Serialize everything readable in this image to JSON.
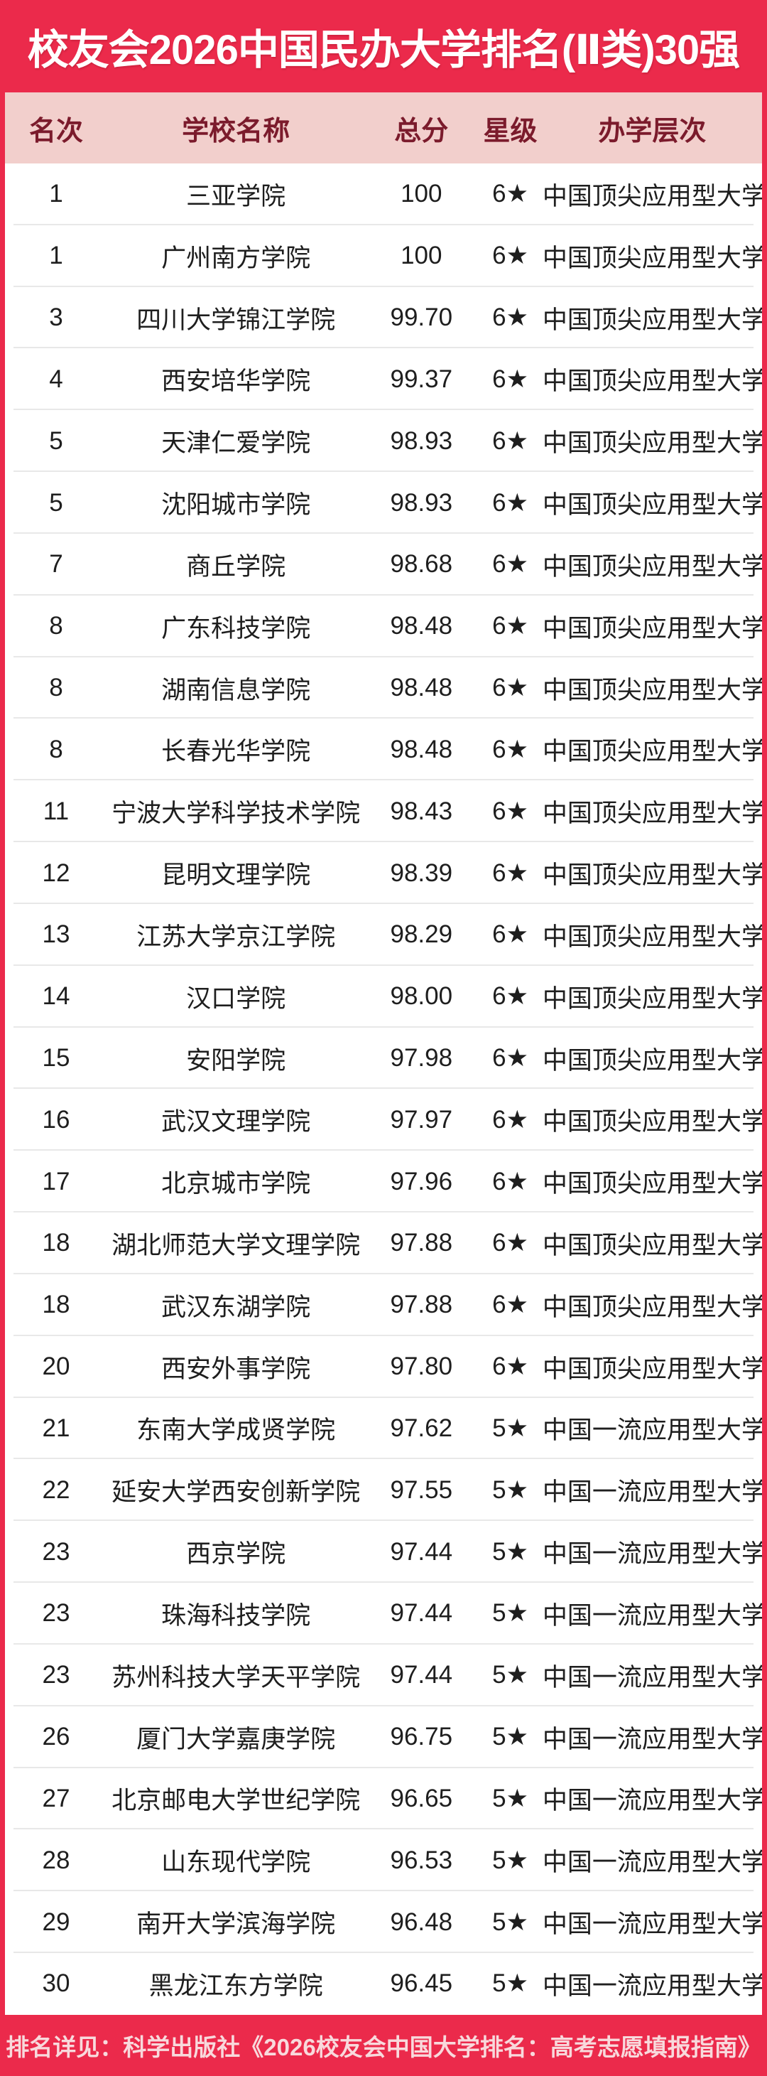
{
  "title": "校友会2026中国民办大学排名(Ⅱ类)30强",
  "footer_note": "排名详见：科学出版社《2026校友会中国大学排名：高考志愿填报指南》",
  "colors": {
    "accent_red": "#EB2A4B",
    "header_bg": "#F2CFCC",
    "header_text": "#7B1B2C",
    "row_text": "#1E1E1E",
    "separator": "#E8E8E8",
    "footer_text": "#F8D9DC"
  },
  "chart_data": {
    "type": "table",
    "title": "校友会2026中国民办大学排名(Ⅱ类)30强",
    "columns": [
      "名次",
      "学校名称",
      "总分",
      "星级",
      "办学层次"
    ],
    "rows": [
      [
        "1",
        "三亚学院",
        "100",
        "6★",
        "中国顶尖应用型大学"
      ],
      [
        "1",
        "广州南方学院",
        "100",
        "6★",
        "中国顶尖应用型大学"
      ],
      [
        "3",
        "四川大学锦江学院",
        "99.70",
        "6★",
        "中国顶尖应用型大学"
      ],
      [
        "4",
        "西安培华学院",
        "99.37",
        "6★",
        "中国顶尖应用型大学"
      ],
      [
        "5",
        "天津仁爱学院",
        "98.93",
        "6★",
        "中国顶尖应用型大学"
      ],
      [
        "5",
        "沈阳城市学院",
        "98.93",
        "6★",
        "中国顶尖应用型大学"
      ],
      [
        "7",
        "商丘学院",
        "98.68",
        "6★",
        "中国顶尖应用型大学"
      ],
      [
        "8",
        "广东科技学院",
        "98.48",
        "6★",
        "中国顶尖应用型大学"
      ],
      [
        "8",
        "湖南信息学院",
        "98.48",
        "6★",
        "中国顶尖应用型大学"
      ],
      [
        "8",
        "长春光华学院",
        "98.48",
        "6★",
        "中国顶尖应用型大学"
      ],
      [
        "11",
        "宁波大学科学技术学院",
        "98.43",
        "6★",
        "中国顶尖应用型大学"
      ],
      [
        "12",
        "昆明文理学院",
        "98.39",
        "6★",
        "中国顶尖应用型大学"
      ],
      [
        "13",
        "江苏大学京江学院",
        "98.29",
        "6★",
        "中国顶尖应用型大学"
      ],
      [
        "14",
        "汉口学院",
        "98.00",
        "6★",
        "中国顶尖应用型大学"
      ],
      [
        "15",
        "安阳学院",
        "97.98",
        "6★",
        "中国顶尖应用型大学"
      ],
      [
        "16",
        "武汉文理学院",
        "97.97",
        "6★",
        "中国顶尖应用型大学"
      ],
      [
        "17",
        "北京城市学院",
        "97.96",
        "6★",
        "中国顶尖应用型大学"
      ],
      [
        "18",
        "湖北师范大学文理学院",
        "97.88",
        "6★",
        "中国顶尖应用型大学"
      ],
      [
        "18",
        "武汉东湖学院",
        "97.88",
        "6★",
        "中国顶尖应用型大学"
      ],
      [
        "20",
        "西安外事学院",
        "97.80",
        "6★",
        "中国顶尖应用型大学"
      ],
      [
        "21",
        "东南大学成贤学院",
        "97.62",
        "5★",
        "中国一流应用型大学"
      ],
      [
        "22",
        "延安大学西安创新学院",
        "97.55",
        "5★",
        "中国一流应用型大学"
      ],
      [
        "23",
        "西京学院",
        "97.44",
        "5★",
        "中国一流应用型大学"
      ],
      [
        "23",
        "珠海科技学院",
        "97.44",
        "5★",
        "中国一流应用型大学"
      ],
      [
        "23",
        "苏州科技大学天平学院",
        "97.44",
        "5★",
        "中国一流应用型大学"
      ],
      [
        "26",
        "厦门大学嘉庚学院",
        "96.75",
        "5★",
        "中国一流应用型大学"
      ],
      [
        "27",
        "北京邮电大学世纪学院",
        "96.65",
        "5★",
        "中国一流应用型大学"
      ],
      [
        "28",
        "山东现代学院",
        "96.53",
        "5★",
        "中国一流应用型大学"
      ],
      [
        "29",
        "南开大学滨海学院",
        "96.48",
        "5★",
        "中国一流应用型大学"
      ],
      [
        "30",
        "黑龙江东方学院",
        "96.45",
        "5★",
        "中国一流应用型大学"
      ]
    ]
  }
}
